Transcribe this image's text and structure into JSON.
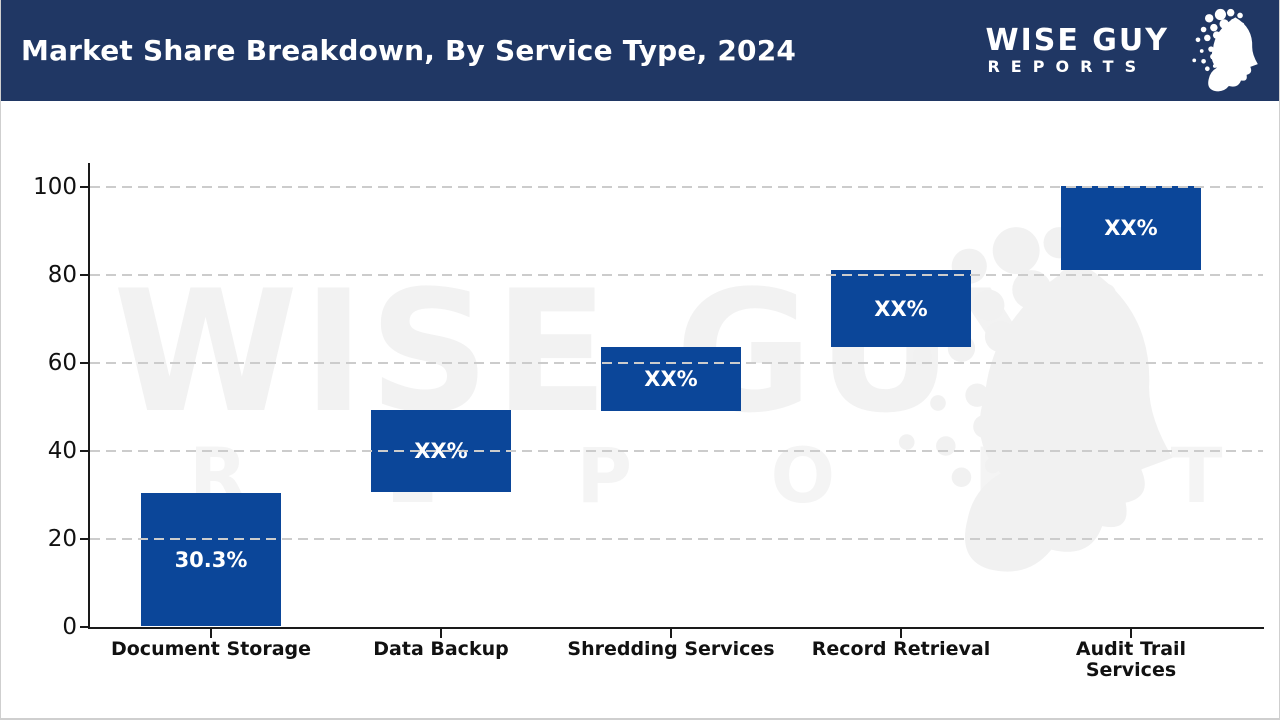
{
  "header": {
    "title": "Market Share Breakdown, By Service Type, 2024",
    "logo": {
      "line1": "WISE GUY",
      "line2": "REPORTS"
    }
  },
  "watermark": {
    "line1": "WISE GUY",
    "line2": "R E P O R T S"
  },
  "colors": {
    "header_bg": "#203764",
    "bar": "#0b4699",
    "grid": "#cccccc",
    "axis": "#1a1a1a",
    "watermark": "#f2f2f2",
    "title_text": "#ffffff",
    "bar_label_text": "#ffffff"
  },
  "chart_data": {
    "type": "bar",
    "subtype": "waterfall",
    "title": "Market Share Breakdown, By Service Type, 2024",
    "xlabel": "",
    "ylabel": "",
    "ylim": [
      0,
      100
    ],
    "yticks": [
      0,
      20,
      40,
      60,
      80,
      100
    ],
    "grid": true,
    "legend": false,
    "categories": [
      "Document Storage",
      "Data Backup",
      "Shredding Services",
      "Record Retrieval",
      "Audit Trail\nServices"
    ],
    "segments": [
      {
        "category": "Document Storage",
        "start": 0,
        "end": 30.3,
        "label": "30.3%"
      },
      {
        "category": "Data Backup",
        "start": 30.3,
        "end": 49.0,
        "label": "XX%"
      },
      {
        "category": "Shredding Services",
        "start": 49.0,
        "end": 63.5,
        "label": "XX%"
      },
      {
        "category": "Record Retrieval",
        "start": 63.5,
        "end": 81.0,
        "label": "XX%"
      },
      {
        "category": "Audit Trail\nServices",
        "start": 81.0,
        "end": 100.0,
        "label": "XX%"
      }
    ]
  }
}
